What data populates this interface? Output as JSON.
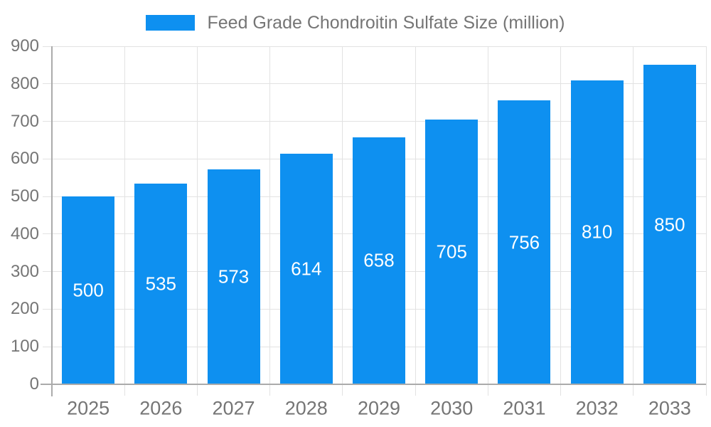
{
  "chart_data": {
    "type": "bar",
    "legend": "Feed Grade Chondroitin Sulfate Size (million)",
    "categories": [
      "2025",
      "2026",
      "2027",
      "2028",
      "2029",
      "2030",
      "2031",
      "2032",
      "2033"
    ],
    "values": [
      500,
      535,
      573,
      614,
      658,
      705,
      756,
      810,
      850
    ],
    "xlabel": "",
    "ylabel": "",
    "ylim": [
      0,
      900
    ],
    "ytick_step": 100,
    "yticks": [
      0,
      100,
      200,
      300,
      400,
      500,
      600,
      700,
      800,
      900
    ],
    "grid": true,
    "legend_position": "top-center",
    "bar_labels_inside": true,
    "colors": {
      "bar": "#0e90f0",
      "bar_label": "#ffffff",
      "axis_text": "#757575",
      "axis_line": "#ababab",
      "gridline": "#e2e2e2",
      "background": "#ffffff"
    }
  }
}
